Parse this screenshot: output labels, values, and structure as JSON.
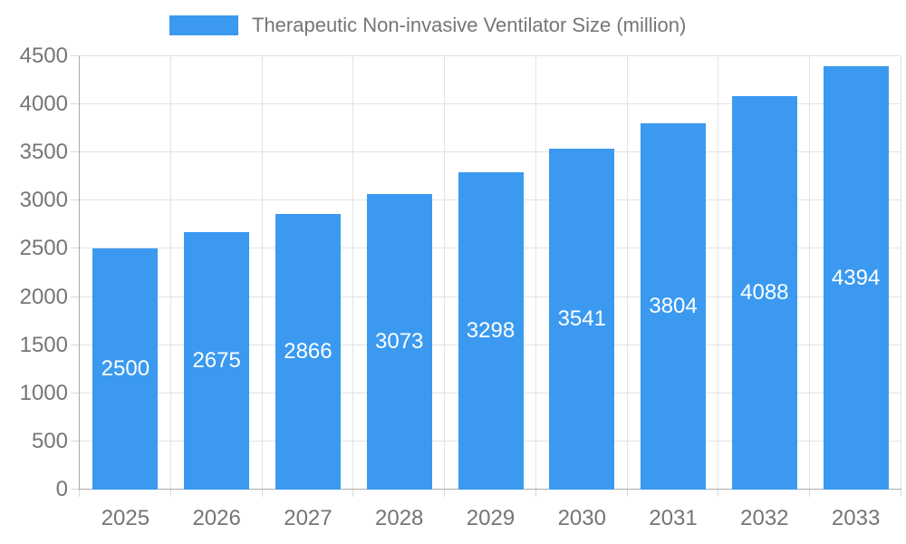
{
  "legend": {
    "label": "Therapeutic Non-invasive Ventilator Size (million)"
  },
  "colors": {
    "bar": "#3B9AF0",
    "bar_label_text": "#FFFFFF",
    "axis_line": "#ABABAB",
    "gridline": "#E3E3E3",
    "tick": "#D9D9D9",
    "label_text": "#757575",
    "background": "#FFFFFF"
  },
  "chart_data": {
    "type": "bar",
    "title": "",
    "categories": [
      "2025",
      "2026",
      "2027",
      "2028",
      "2029",
      "2030",
      "2031",
      "2032",
      "2033"
    ],
    "values": [
      2500,
      2675,
      2866,
      3073,
      3298,
      3541,
      3804,
      4088,
      4394
    ],
    "series": [
      {
        "name": "Therapeutic Non-invasive Ventilator Size (million)",
        "values": [
          2500,
          2675,
          2866,
          3073,
          3298,
          3541,
          3804,
          4088,
          4394
        ]
      }
    ],
    "xlabel": "",
    "ylabel": "",
    "ylim": [
      0,
      4500
    ],
    "yticks": [
      0,
      500,
      1000,
      1500,
      2000,
      2500,
      3000,
      3500,
      4000,
      4500
    ],
    "grid": true,
    "legend_position": "top",
    "value_label_position": "inside-center"
  }
}
